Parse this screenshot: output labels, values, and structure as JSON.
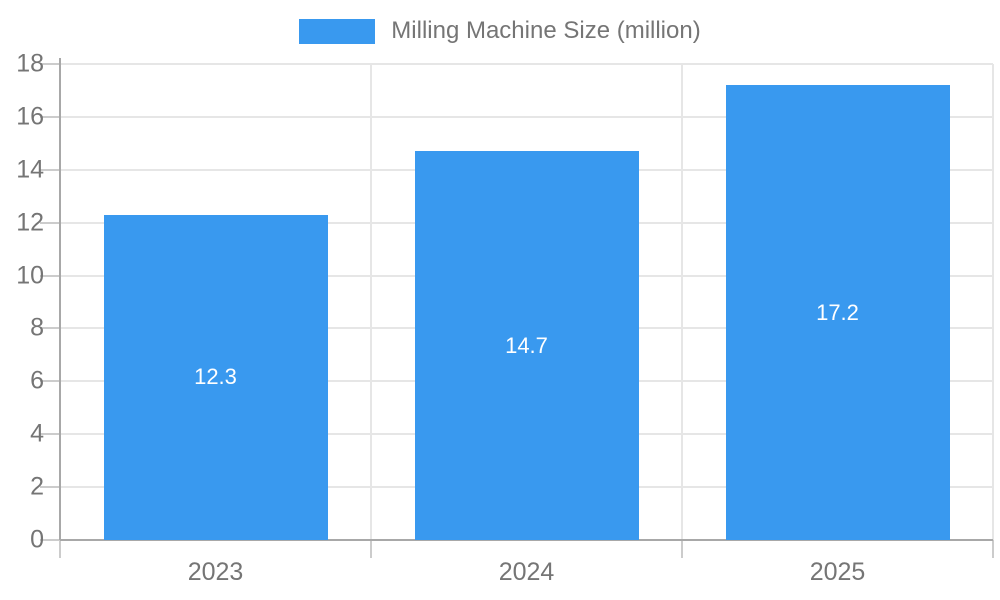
{
  "chart_data": {
    "type": "bar",
    "title": "Milling Machine Size (million)",
    "legend": {
      "position": "top-center",
      "label": "Milling Machine Size (million)"
    },
    "categories": [
      "2023",
      "2024",
      "2025"
    ],
    "values": [
      12.3,
      14.7,
      17.2
    ],
    "value_labels": [
      "12.3",
      "14.7",
      "17.2"
    ],
    "xlabel": "",
    "ylabel": "",
    "ylim": [
      0,
      18
    ],
    "yticks": [
      0,
      2,
      4,
      6,
      8,
      10,
      12,
      14,
      16,
      18
    ],
    "grid": true,
    "colors": {
      "bar": "#3999ef",
      "value_label": "#ffffff",
      "axis_text": "#757575",
      "gridline": "#e6e6e6",
      "axis_line": "#a8a8a8",
      "tick_mark": "#cccccc"
    }
  }
}
